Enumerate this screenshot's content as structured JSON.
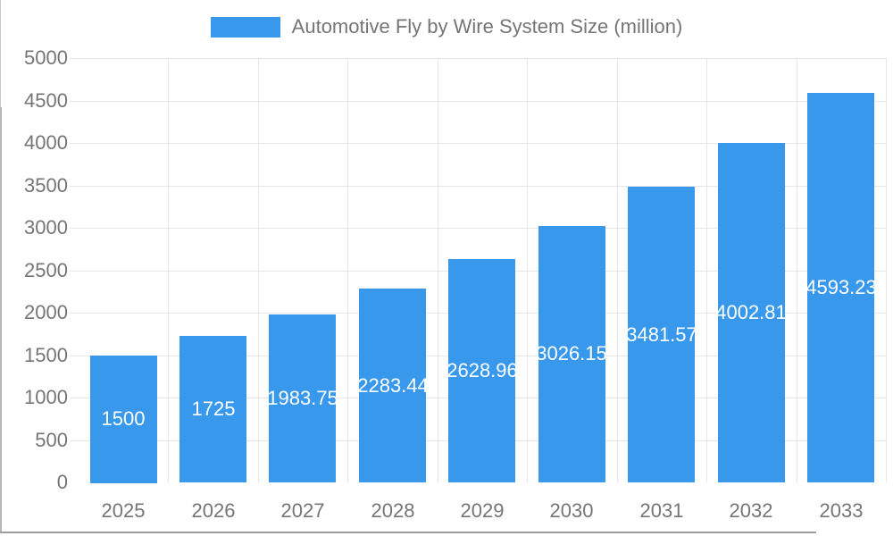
{
  "legend": {
    "label": "Automotive Fly by Wire System Size (million)"
  },
  "chart_data": {
    "type": "bar",
    "title": "Automotive Fly by Wire System Size (million)",
    "categories": [
      "2025",
      "2026",
      "2027",
      "2028",
      "2029",
      "2030",
      "2031",
      "2032",
      "2033"
    ],
    "series": [
      {
        "name": "Automotive Fly by Wire System Size (million)",
        "values": [
          1500,
          1725,
          1983.75,
          2283.44,
          2628.96,
          3026.15,
          3481.57,
          4002.81,
          4593.23
        ],
        "value_labels": [
          "1500",
          "1725",
          "1983.75",
          "2283.44",
          "2628.96",
          "3026.15",
          "3481.57",
          "4002.81",
          "4593.23"
        ]
      }
    ],
    "xlabel": "",
    "ylabel": "",
    "ylim": [
      0,
      5000
    ],
    "ytick_step": 500,
    "ytick_labels": [
      "0",
      "500",
      "1000",
      "1500",
      "2000",
      "2500",
      "3000",
      "3500",
      "4000",
      "4500",
      "5000"
    ],
    "grid": "horizontal and vertical light gray",
    "legend_position": "top-center",
    "colors": {
      "bar": "#3898ec",
      "bar_value_label": "#ffffff",
      "axis_text": "#757575",
      "x_axis_line": "#9e9e9e",
      "y_axis_line": "#b5b5b5",
      "gridline": "#e6e6e6",
      "tick": "#cccccc",
      "background": "#ffffff"
    }
  }
}
